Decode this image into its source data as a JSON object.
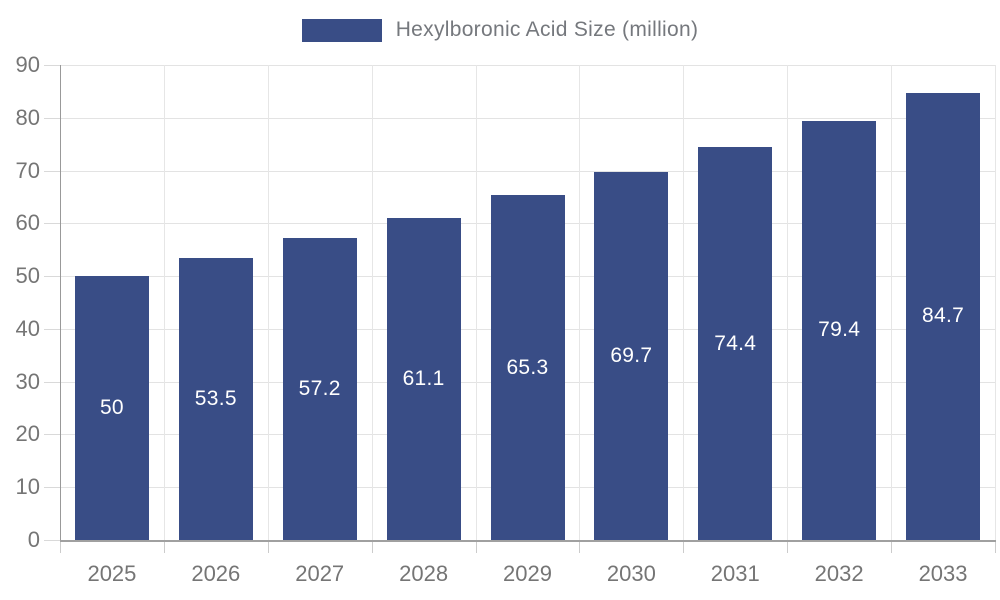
{
  "legend": {
    "label": "Hexylboronic Acid Size (million)"
  },
  "colors": {
    "bar": "#394d86",
    "bar_label": "#ffffff",
    "grid": "#e3e3e3",
    "axis": "#999999",
    "tick": "#cccccc",
    "axis_label": "#757575",
    "legend_text": "#75787d",
    "background": "#ffffff"
  },
  "chart_data": {
    "type": "bar",
    "title": "Hexylboronic Acid Size (million)",
    "categories": [
      "2025",
      "2026",
      "2027",
      "2028",
      "2029",
      "2030",
      "2031",
      "2032",
      "2033"
    ],
    "values": [
      50,
      53.5,
      57.2,
      61.1,
      65.3,
      69.7,
      74.4,
      79.4,
      84.7
    ],
    "value_labels": [
      "50",
      "53.5",
      "57.2",
      "61.1",
      "65.3",
      "69.7",
      "74.4",
      "79.4",
      "84.7"
    ],
    "xlabel": "",
    "ylabel": "",
    "ylim": [
      0,
      90
    ],
    "ytick_step": 10,
    "yticks": [
      0,
      10,
      20,
      30,
      40,
      50,
      60,
      70,
      80,
      90
    ],
    "grid": true,
    "legend_position": "top-center",
    "series": [
      {
        "name": "Hexylboronic Acid Size (million)",
        "values": [
          50,
          53.5,
          57.2,
          61.1,
          65.3,
          69.7,
          74.4,
          79.4,
          84.7
        ]
      }
    ]
  }
}
